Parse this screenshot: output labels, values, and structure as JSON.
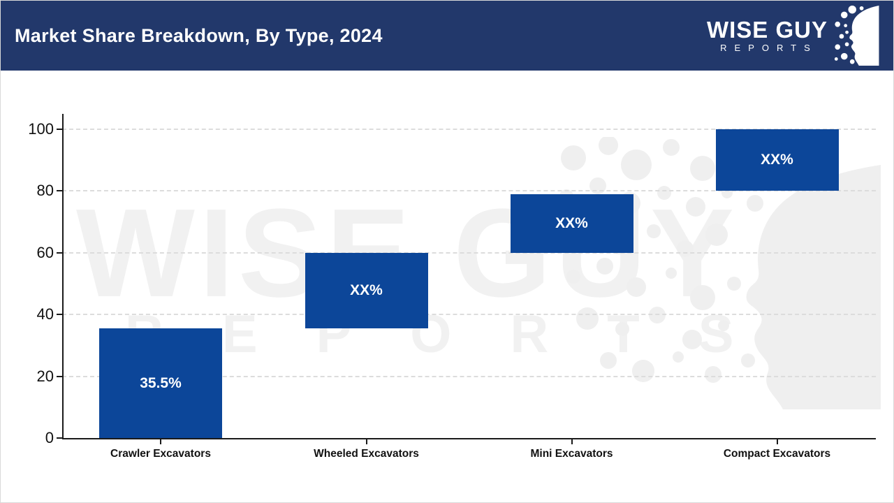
{
  "header": {
    "title": "Market Share Breakdown, By Type, 2024",
    "logo": {
      "line1": "WISE GUY",
      "line2": "REPORTS"
    }
  },
  "watermark": {
    "line1": "WISE GUY",
    "line2": "REPORTS"
  },
  "colors": {
    "header_bg": "#22386B",
    "bar": "#0c4699",
    "grid": "#dcdcdc",
    "axis": "#1a1a1a",
    "watermark": "#f1f1f1",
    "title_text": "#ffffff",
    "bar_label_text": "#ffffff",
    "tick_text": "#111111"
  },
  "chart_data": {
    "type": "bar",
    "subtype": "floating-waterfall",
    "title": "Market Share Breakdown, By Type, 2024",
    "categories": [
      "Crawler Excavators",
      "Wheeled Excavators",
      "Mini Excavators",
      "Compact Excavators"
    ],
    "segments": [
      {
        "category": "Crawler Excavators",
        "start": 0,
        "end": 35.5,
        "label": "35.5%"
      },
      {
        "category": "Wheeled Excavators",
        "start": 35.5,
        "end": 60,
        "label": "XX%"
      },
      {
        "category": "Mini Excavators",
        "start": 60,
        "end": 79,
        "label": "XX%"
      },
      {
        "category": "Compact Excavators",
        "start": 80,
        "end": 100,
        "label": "XX%"
      }
    ],
    "value_labels": [
      "35.5%",
      "XX%",
      "XX%",
      "XX%"
    ],
    "xlabel": "",
    "ylabel": "",
    "yticks": [
      0,
      20,
      40,
      60,
      80,
      100
    ],
    "ylim": [
      0,
      105
    ],
    "grid": "horizontal-dashed",
    "legend": "none"
  }
}
